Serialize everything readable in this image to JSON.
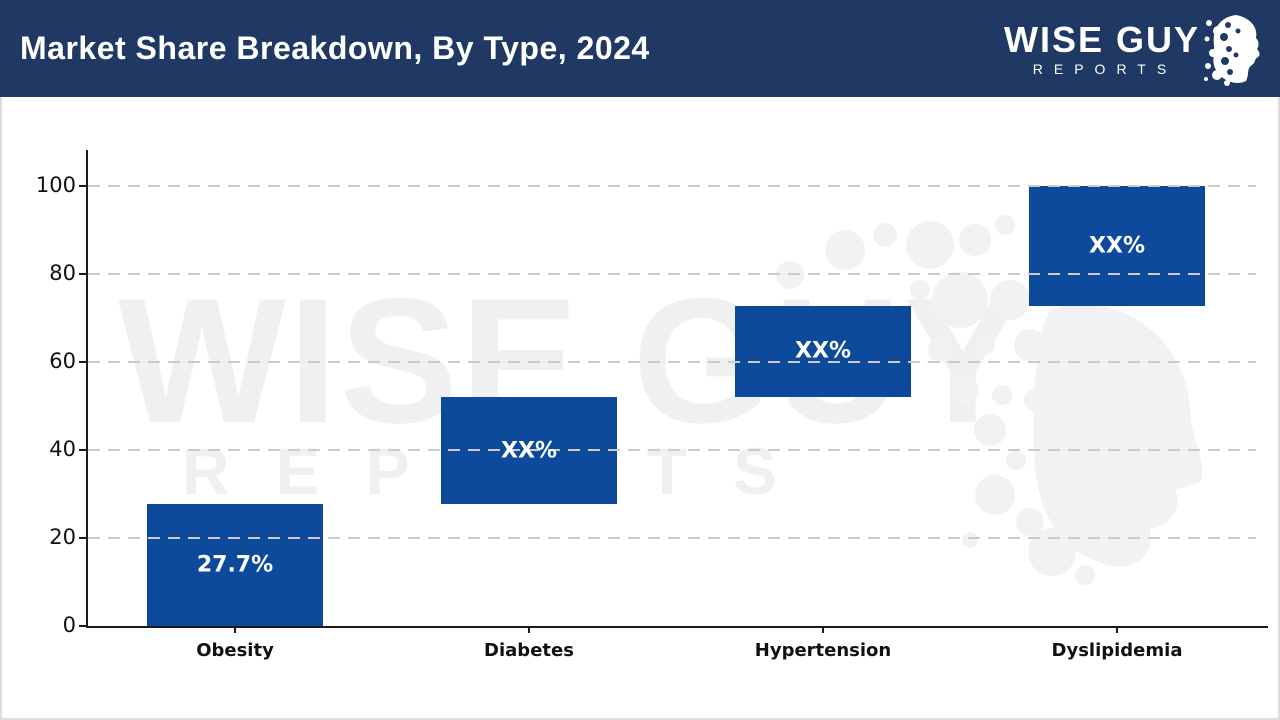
{
  "header": {
    "title": "Market Share Breakdown, By Type, 2024",
    "logo": {
      "wordmark": "WISE GUY",
      "subtext": "REPORTS"
    }
  },
  "watermark": {
    "wordmark": "WISE GUY",
    "subtext": "REPORTS"
  },
  "colors": {
    "header_bg": "#1f3864",
    "bar": "#0d4a9c",
    "bar_label": "#ffffff",
    "grid": "#cbcbcb",
    "axis": "#1a1a1a",
    "watermark": "#f0f0f3"
  },
  "chart_data": {
    "type": "bar",
    "subtype": "waterfall",
    "title": "Market Share Breakdown, By Type, 2024",
    "categories": [
      "Obesity",
      "Diabetes",
      "Hypertension",
      "Dyslipidemia"
    ],
    "segments": [
      {
        "category": "Obesity",
        "start": 0,
        "end": 27.7,
        "label": "27.7%"
      },
      {
        "category": "Diabetes",
        "start": 27.7,
        "end": 52.0,
        "label": "XX%"
      },
      {
        "category": "Hypertension",
        "start": 52.0,
        "end": 72.8,
        "label": "XX%"
      },
      {
        "category": "Dyslipidemia",
        "start": 72.8,
        "end": 100,
        "label": "XX%"
      }
    ],
    "xlabel": "",
    "ylabel": "",
    "ylim": [
      0,
      100
    ],
    "yticks": [
      0,
      20,
      40,
      60,
      80,
      100
    ],
    "ytick_labels": [
      "0",
      "20",
      "40",
      "60",
      "80",
      "100"
    ],
    "grid": "horizontal-dashed-above-bars",
    "legend_position": "none"
  }
}
